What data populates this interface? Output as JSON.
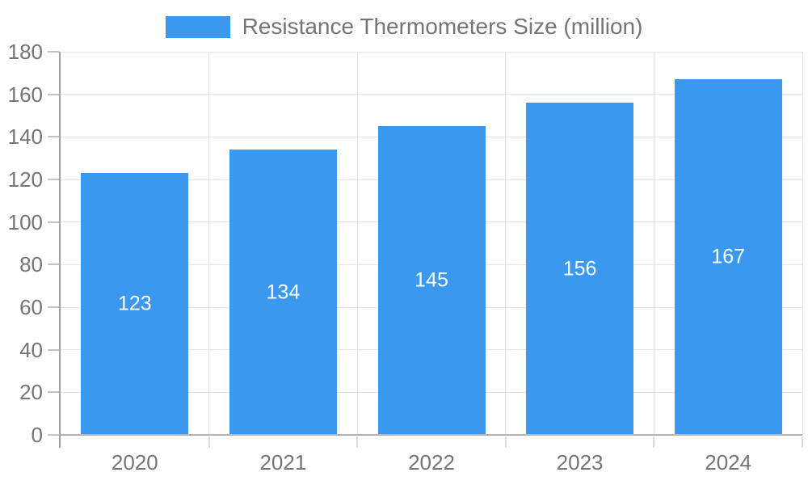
{
  "legend": {
    "label": "Resistance Thermometers Size (million)"
  },
  "chart_data": {
    "type": "bar",
    "title": "Resistance Thermometers Size (million)",
    "categories": [
      "2020",
      "2021",
      "2022",
      "2023",
      "2024"
    ],
    "values": [
      123,
      134,
      145,
      156,
      167
    ],
    "xlabel": "",
    "ylabel": "",
    "ylim": [
      0,
      180
    ],
    "ytick_step": 20,
    "grid": true,
    "legend_position": "top-center",
    "colors": {
      "bar": "#3A99EE",
      "bar_value_text": "#ffffff",
      "axis_text": "#757575",
      "gridline": "#e4e4e4",
      "x_axis_line": "#b3b3b3",
      "y_axis_line": "#a0a0a0",
      "y_tick": "#c4c4c4",
      "x_tick": "#dcdcdc"
    }
  }
}
